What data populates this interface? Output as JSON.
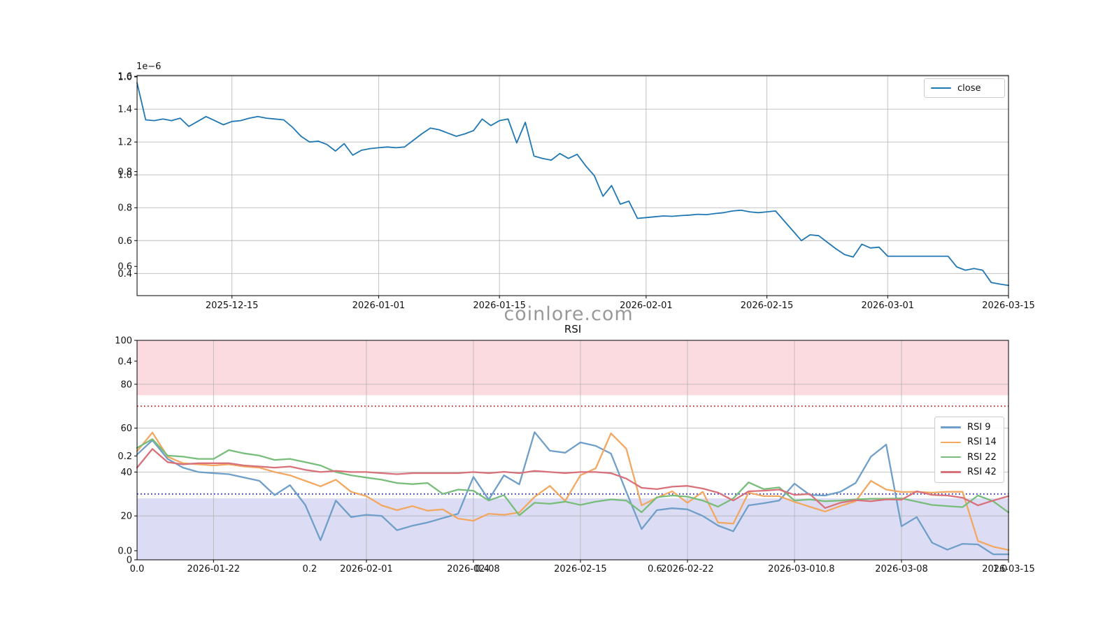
{
  "watermark": "coinlore.com",
  "price_chart": {
    "offset_exponent_label": "1e−6",
    "legend_label": "close",
    "y_tick_labels": [
      "0.4",
      "0.6",
      "0.8",
      "1.0",
      "1.2",
      "1.4",
      "1.6"
    ],
    "x_tick_labels": [
      "2025-12-15",
      "2026-01-01",
      "2026-01-15",
      "2026-02-01",
      "2026-02-15",
      "2026-03-01",
      "2026-03-15"
    ]
  },
  "rsi_chart": {
    "title": "RSI",
    "legend": [
      "RSI 9",
      "RSI 14",
      "RSI 22",
      "RSI 42"
    ],
    "y_tick_labels": [
      "0",
      "20",
      "40",
      "60",
      "80",
      "100"
    ],
    "x_tick_labels": [
      "2026-01-22",
      "2026-02-01",
      "2026-02-08",
      "2026-02-15",
      "2026-02-22",
      "2026-03-01",
      "2026-03-08",
      "2026-03-15"
    ]
  },
  "figure_axis": {
    "y_tick_labels": [
      "1.0",
      "0.8",
      "0.6",
      "0.4",
      "0.2",
      "0.0"
    ],
    "x_tick_labels": [
      "0.0",
      "0.2",
      "0.4",
      "0.6",
      "0.8",
      "1.0"
    ]
  },
  "colors": {
    "background": "#ffffff",
    "close_line": "#1f77b4",
    "rsi9": "#6f9fc8",
    "rsi14": "#f2a860",
    "rsi22": "#79bd7b",
    "rsi42": "#d9717a",
    "overbought_fill": "#fbdbe0",
    "oversold_fill": "#dcdcf5",
    "overbought_dotted": "#c8202f",
    "oversold_dotted": "#2323c8",
    "grid": "#b0b0b0",
    "spine": "#000000",
    "watermark_text": "#999999"
  },
  "chart_data": [
    {
      "id": "price",
      "type": "line",
      "title": "",
      "unit_note": "y values scaled by 1e-6 (offset label shown on axis)",
      "x_start_date": "2025-12-04",
      "x_end_date": "2026-03-15",
      "x_tick_labels": [
        "2025-12-15",
        "2026-01-01",
        "2026-01-15",
        "2026-02-01",
        "2026-02-15",
        "2026-03-01",
        "2026-03-15"
      ],
      "y_ticks": [
        0.4,
        0.6,
        0.8,
        1.0,
        1.2,
        1.4,
        1.6
      ],
      "ylim": [
        0.265,
        1.605
      ],
      "grid": true,
      "legend_position": "upper right",
      "series": [
        {
          "name": "close",
          "color": "#1f77b4",
          "values": [
            1.56,
            1.335,
            1.33,
            1.34,
            1.33,
            1.345,
            1.295,
            1.325,
            1.355,
            1.33,
            1.305,
            1.325,
            1.33,
            1.345,
            1.355,
            1.345,
            1.34,
            1.335,
            1.29,
            1.235,
            1.2,
            1.205,
            1.185,
            1.145,
            1.19,
            1.12,
            1.15,
            1.16,
            1.165,
            1.17,
            1.165,
            1.17,
            1.21,
            1.25,
            1.285,
            1.275,
            1.255,
            1.235,
            1.25,
            1.27,
            1.34,
            1.3,
            1.33,
            1.34,
            1.195,
            1.32,
            1.115,
            1.1,
            1.09,
            1.13,
            1.1,
            1.125,
            1.055,
            0.995,
            0.87,
            0.935,
            0.822,
            0.84,
            0.735,
            0.74,
            0.745,
            0.75,
            0.748,
            0.752,
            0.755,
            0.76,
            0.758,
            0.765,
            0.77,
            0.78,
            0.785,
            0.775,
            0.77,
            0.775,
            0.78,
            0.72,
            0.66,
            0.6,
            0.635,
            0.63,
            0.59,
            0.55,
            0.515,
            0.5,
            0.578,
            0.555,
            0.56,
            0.505,
            0.505,
            0.505,
            0.505,
            0.505,
            0.505,
            0.505,
            0.505,
            0.44,
            0.42,
            0.43,
            0.42,
            0.345,
            0.335,
            0.327
          ]
        }
      ]
    },
    {
      "id": "rsi",
      "type": "line",
      "title": "RSI",
      "x_start_date": "2026-01-17",
      "x_end_date": "2026-03-15",
      "x_tick_labels": [
        "2026-01-22",
        "2026-02-01",
        "2026-02-08",
        "2026-02-15",
        "2026-02-22",
        "2026-03-01",
        "2026-03-08",
        "2026-03-15"
      ],
      "y_ticks": [
        0,
        20,
        40,
        60,
        80,
        100
      ],
      "ylim": [
        0,
        100
      ],
      "grid": true,
      "overbought_threshold": 70,
      "oversold_threshold": 30,
      "overbought_band": [
        75,
        100
      ],
      "oversold_band": [
        0,
        28
      ],
      "legend_position": "right",
      "series": [
        {
          "name": "RSI 9",
          "color": "#6f9fc8",
          "values": [
            48,
            54.5,
            46,
            42,
            40,
            39.5,
            39,
            37.5,
            36,
            29.5,
            34,
            25,
            8.9,
            27,
            19.5,
            20.5,
            20,
            13.5,
            15.5,
            17,
            19,
            21,
            37.8,
            27.4,
            38.5,
            34.4,
            58.2,
            49.7,
            48.8,
            53.5,
            51.9,
            48.4,
            31,
            14,
            22.6,
            23.5,
            23,
            20,
            15.6,
            13,
            24.8,
            25.8,
            27,
            34.7,
            29.6,
            29.3,
            31,
            35,
            47,
            52.5,
            15.3,
            19.5,
            7.8,
            4.6,
            7.3,
            7,
            2.5,
            2.5
          ]
        },
        {
          "name": "RSI 14",
          "color": "#f2a860",
          "values": [
            49.5,
            58,
            47,
            44,
            43.5,
            43,
            43.5,
            42.5,
            42,
            40,
            38.5,
            36,
            33.5,
            36.5,
            31,
            29,
            24.8,
            22.6,
            24.5,
            22.4,
            23,
            18.8,
            17.8,
            21,
            20.5,
            21.6,
            28.7,
            33.7,
            26.8,
            38.5,
            41.7,
            57.6,
            50.6,
            24.8,
            28.3,
            31.2,
            26,
            31,
            17,
            16.5,
            30.6,
            29,
            29,
            26.4,
            24.2,
            22,
            24.5,
            26.7,
            36,
            32,
            30.9,
            31,
            30.6,
            31,
            31,
            8.6,
            6,
            4.5
          ]
        },
        {
          "name": "RSI 22",
          "color": "#79bd7b",
          "values": [
            51,
            55,
            47.5,
            47,
            46,
            46,
            50,
            48.5,
            47.5,
            45.5,
            46,
            44.5,
            43,
            40,
            38.5,
            37.5,
            36.5,
            35,
            34.5,
            35,
            30,
            32,
            31.5,
            27,
            29.5,
            20.3,
            26,
            25.5,
            26.5,
            25,
            26.5,
            27.5,
            27,
            21.7,
            28.5,
            29.3,
            28.8,
            27,
            24.2,
            28,
            35.3,
            32.2,
            33,
            27,
            27.5,
            26.7,
            27,
            27.5,
            27.8,
            27.8,
            28,
            26.5,
            25,
            24.5,
            24,
            29.3,
            26.7,
            21.6
          ]
        },
        {
          "name": "RSI 42",
          "color": "#d9717a",
          "values": [
            42,
            50.5,
            44.5,
            43.5,
            44,
            44,
            44,
            43,
            42.5,
            42,
            42.5,
            41,
            40,
            40.5,
            40,
            40,
            39.5,
            39,
            39.5,
            39.5,
            39.5,
            39.5,
            40,
            39.5,
            40.1,
            39.5,
            40.5,
            40,
            39.5,
            40,
            40,
            39.5,
            37,
            32.8,
            32.2,
            33.3,
            33.7,
            32.5,
            30.6,
            27,
            31.2,
            31.5,
            32,
            29.6,
            30,
            23.6,
            26,
            27.2,
            26.7,
            27.5,
            27.4,
            31.2,
            29.6,
            29.3,
            28.3,
            24.8,
            27,
            29
          ]
        }
      ]
    }
  ]
}
